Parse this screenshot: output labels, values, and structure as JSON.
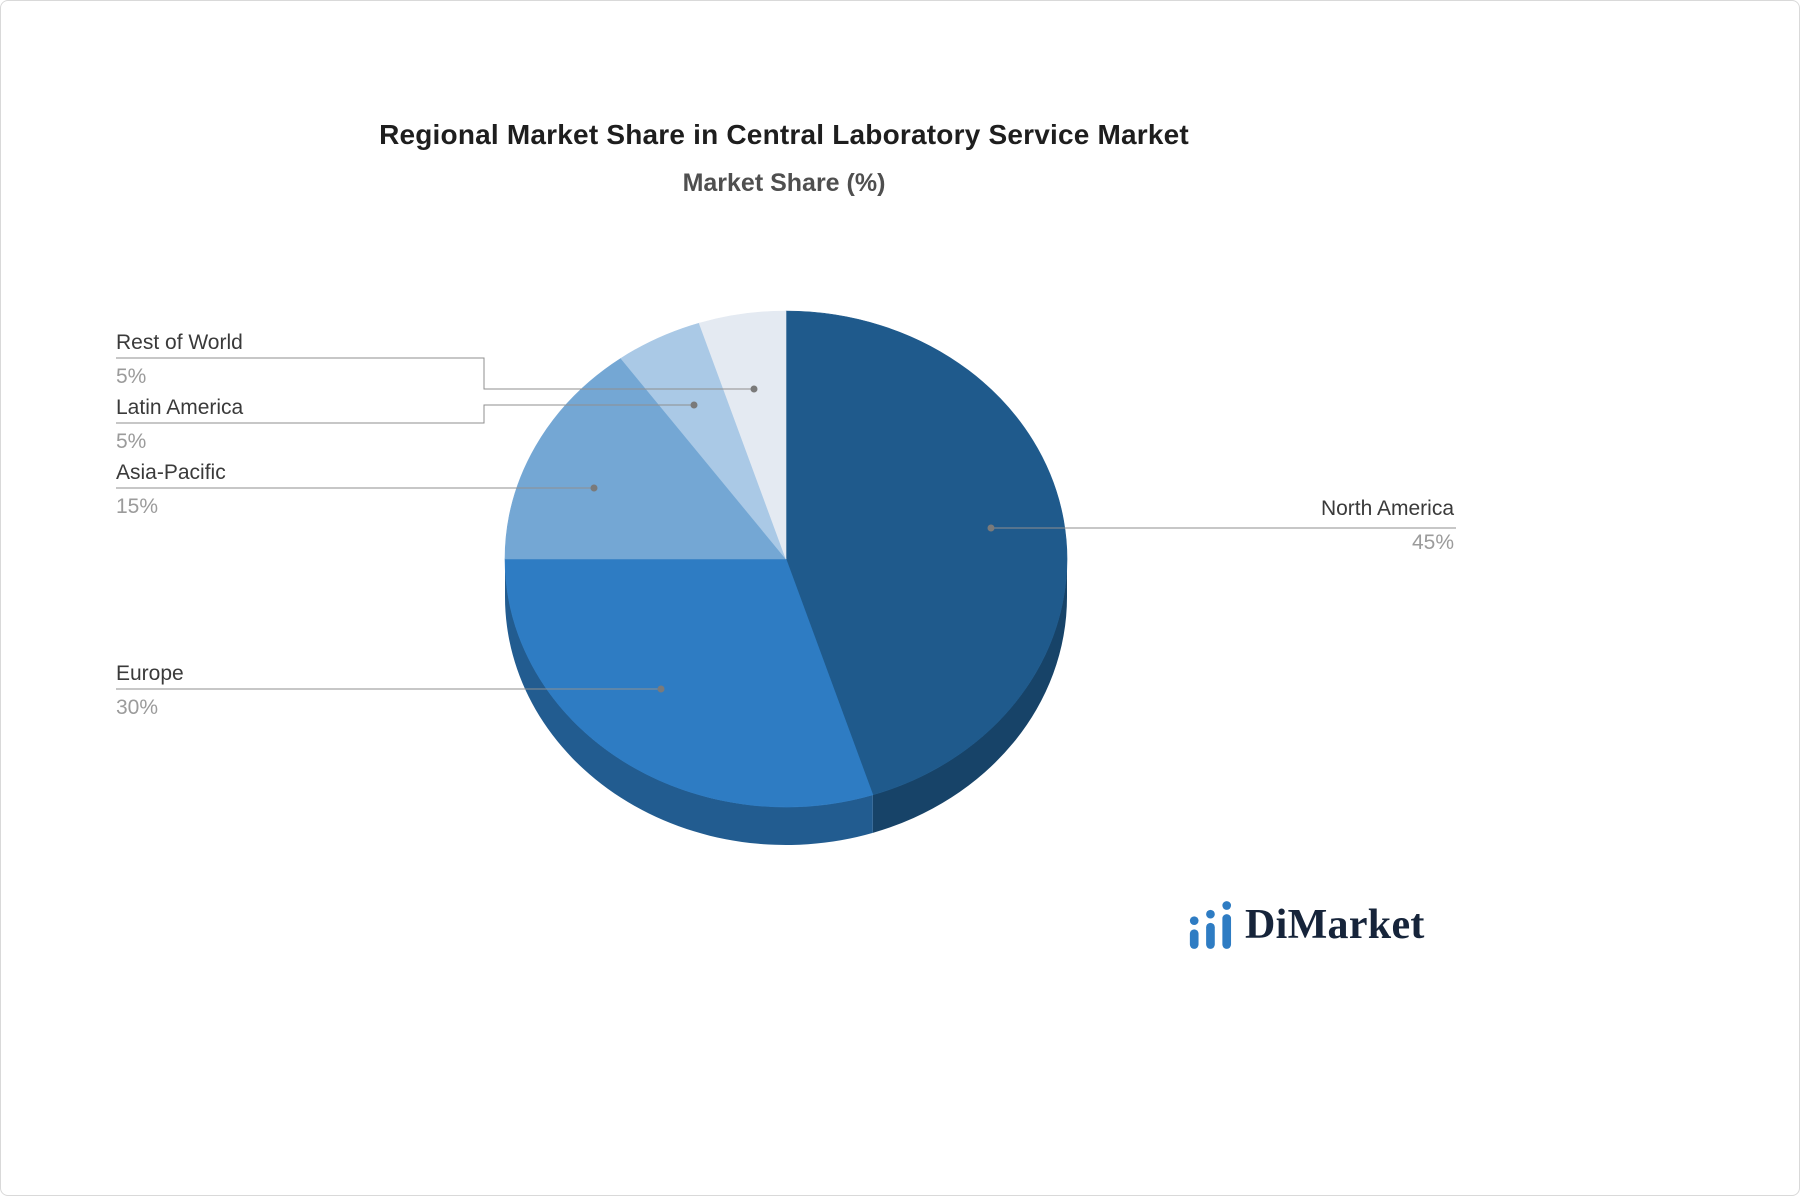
{
  "title": "Regional Market Share in Central Laboratory Service Market",
  "subtitle": "Market Share (%)",
  "brand": {
    "name": "DiMarket",
    "icon": "bar-chart-logo-icon",
    "icon_color": "#2e7cc3",
    "text_color": "#16243a"
  },
  "chart_data": {
    "type": "pie",
    "title": "Regional Market Share in Central Laboratory Service Market",
    "subtitle": "Market Share (%)",
    "unit": "%",
    "labels": [
      "North America",
      "Europe",
      "Asia-Pacific",
      "Latin America",
      "Rest of World"
    ],
    "values": [
      45,
      30,
      15,
      5,
      5
    ],
    "display_values": [
      "45%",
      "30%",
      "15%",
      "5%",
      "5%"
    ],
    "colors": [
      "#1f5a8c",
      "#2e7cc3",
      "#74a7d4",
      "#aac9e6",
      "#e4eaf2"
    ],
    "start_angle_deg": 0,
    "direction": "clockwise",
    "effect": "3d",
    "legend_position": "none",
    "label_style": "leader-lines",
    "leader_line_color": "#8f8f8f",
    "label_text_color": "#3a3a3a",
    "value_text_color": "#9b9b9b"
  }
}
